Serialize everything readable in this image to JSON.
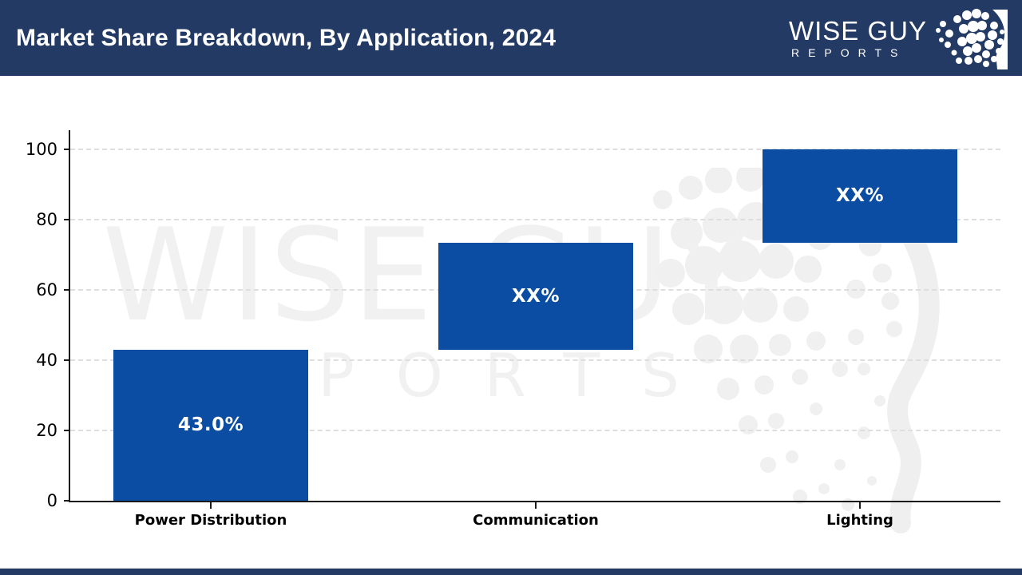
{
  "header": {
    "title": "Market Share Breakdown, By Application, 2024",
    "logo_line1": "WISE GUY",
    "logo_line2": "REPORTS"
  },
  "watermark": {
    "line1": "WISE GUY",
    "line2": "REPORTS"
  },
  "chart_data": {
    "type": "bar",
    "subtype": "floating-waterfall",
    "title": "Market Share Breakdown, By Application, 2024",
    "categories": [
      "Power Distribution",
      "Communication",
      "Lighting"
    ],
    "segments": [
      {
        "category": "Power Distribution",
        "start": 0,
        "end": 43.0,
        "label": "43.0%"
      },
      {
        "category": "Communication",
        "start": 43.0,
        "end": 73.5,
        "label": "XX%"
      },
      {
        "category": "Lighting",
        "start": 73.5,
        "end": 100.0,
        "label": "XX%"
      }
    ],
    "y_ticks": [
      0,
      20,
      40,
      60,
      80,
      100
    ],
    "ylim": [
      0,
      100
    ],
    "xlabel": "",
    "ylabel": "",
    "legend": "none",
    "grid": "horizontal-dashed",
    "bar_color": "#0b4da2",
    "label_color": "#ffffff"
  },
  "colors": {
    "header_bg": "#223a64",
    "bar": "#0b4da2",
    "watermark": "#f1f1f1",
    "gridline": "#dedede",
    "axis": "#1a1a1a"
  }
}
